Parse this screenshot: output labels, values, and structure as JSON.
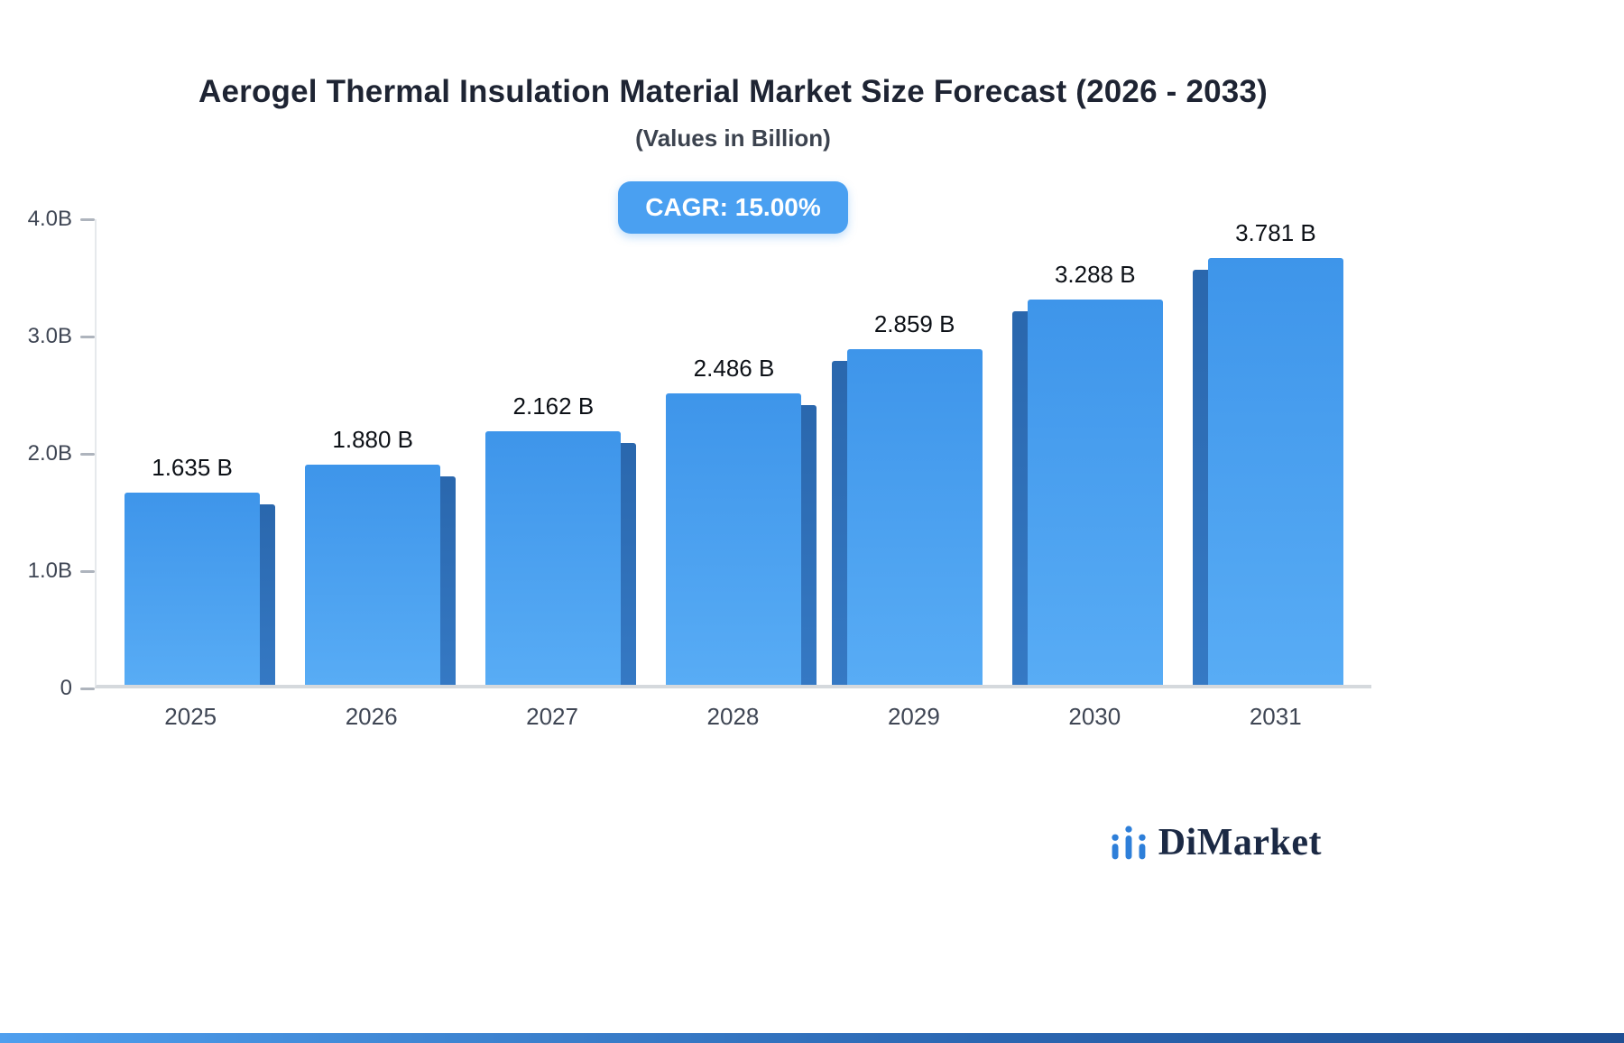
{
  "header": {
    "title": "Aerogel Thermal Insulation Material Market Size Forecast (2026 - 2033)",
    "subtitle": "(Values in Billion)",
    "cagr_badge": "CAGR: 15.00%"
  },
  "logo": {
    "text": "DiMarket",
    "icon": "bar-chart-icon"
  },
  "colors": {
    "bar_main_top": "#3e95ea",
    "bar_main_bottom": "#58acf5",
    "bar_side": "#2c6fb7",
    "badge_bg": "#4aa0f1",
    "logo_blue": "#2e7fd9",
    "axis_text": "#3f4654",
    "title_text": "#1e2433"
  },
  "chart_data": {
    "type": "bar",
    "title": "Aerogel Thermal Insulation Material Market Size Forecast (2026 - 2033)",
    "subtitle": "(Values in Billion)",
    "cagr": "15.00%",
    "categories": [
      "2025",
      "2026",
      "2027",
      "2028",
      "2029",
      "2030",
      "2031"
    ],
    "values": [
      1.635,
      1.88,
      2.162,
      2.486,
      2.859,
      3.288,
      3.781
    ],
    "bar_labels": [
      "1.635 B",
      "1.880 B",
      "2.162 B",
      "2.486 B",
      "2.859 B",
      "3.288 B",
      "3.781 B"
    ],
    "xlabel": "",
    "ylabel": "",
    "ylim": [
      0,
      4.0
    ],
    "yticks": [
      {
        "value": 0,
        "label": "0"
      },
      {
        "value": 1,
        "label": "1.0B"
      },
      {
        "value": 2,
        "label": "2.0B"
      },
      {
        "value": 3,
        "label": "3.0B"
      },
      {
        "value": 4,
        "label": "4.0B"
      }
    ],
    "grid": false,
    "legend": false
  }
}
